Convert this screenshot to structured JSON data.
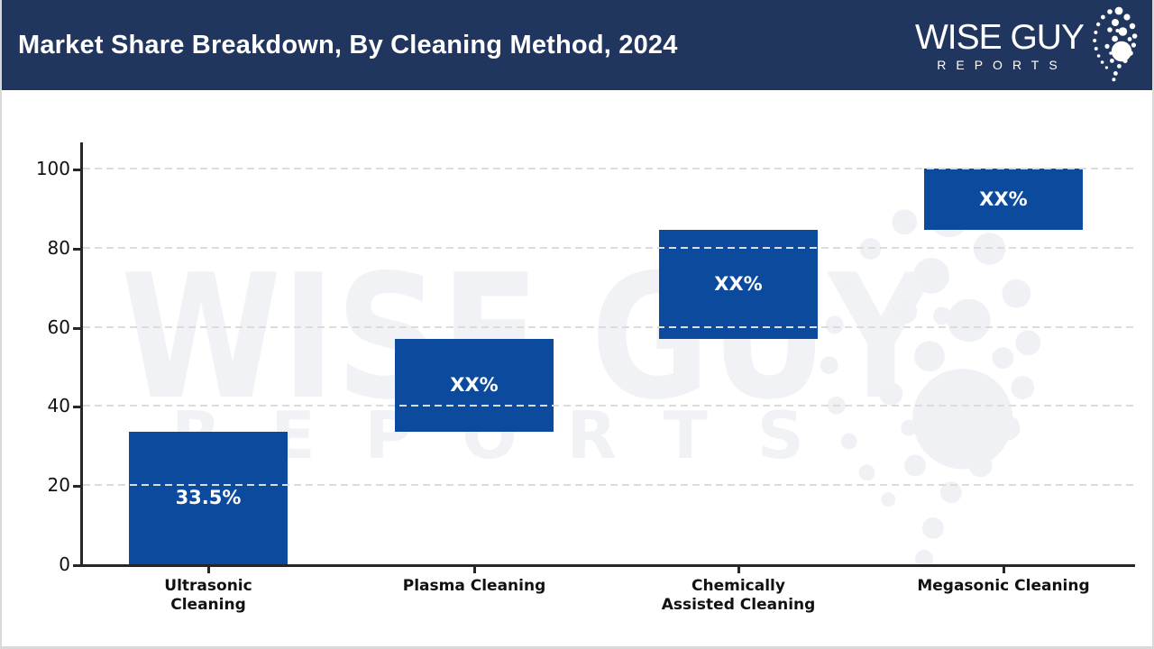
{
  "header": {
    "title": "Market Share Breakdown, By Cleaning Method, 2024",
    "bg_color": "#21365E",
    "brand": {
      "line1": "WISE GUY",
      "line2": "REPORTS",
      "icon": "dotted-head-profile-icon"
    }
  },
  "watermark": {
    "line1": "WISE GUY",
    "line2": "REPORTS",
    "icon": "dotted-head-profile-watermark",
    "color": "#F1F2F5"
  },
  "chart_data": {
    "type": "bar",
    "subtype": "waterfall",
    "title": "Market Share Breakdown, By Cleaning Method, 2024",
    "xlabel": "",
    "ylabel": "",
    "ylim": [
      0,
      106
    ],
    "yticks": [
      0,
      20,
      40,
      60,
      80,
      100
    ],
    "grid": "dashed-horizontal",
    "legend": "none",
    "bar_color": "#0C4A9E",
    "bar_label_color": "#FFFFFF",
    "categories": [
      "Ultrasonic Cleaning",
      "Plasma Cleaning",
      "Chemically Assisted Cleaning",
      "Megasonic Cleaning"
    ],
    "category_label_lines": [
      [
        "Ultrasonic",
        "Cleaning"
      ],
      [
        "Plasma Cleaning"
      ],
      [
        "Chemically",
        "Assisted Cleaning"
      ],
      [
        "Megasonic Cleaning"
      ]
    ],
    "segments": [
      {
        "category": "Ultrasonic Cleaning",
        "start": 0,
        "end": 33.5,
        "value": 33.5,
        "label": "33.5%"
      },
      {
        "category": "Plasma Cleaning",
        "start": 33.5,
        "end": 57,
        "value": 23.5,
        "label": "XX%"
      },
      {
        "category": "Chemically Assisted Cleaning",
        "start": 57,
        "end": 84.5,
        "value": 27.5,
        "label": "XX%"
      },
      {
        "category": "Megasonic Cleaning",
        "start": 84.5,
        "end": 100,
        "value": 15.5,
        "label": "XX%"
      }
    ]
  }
}
